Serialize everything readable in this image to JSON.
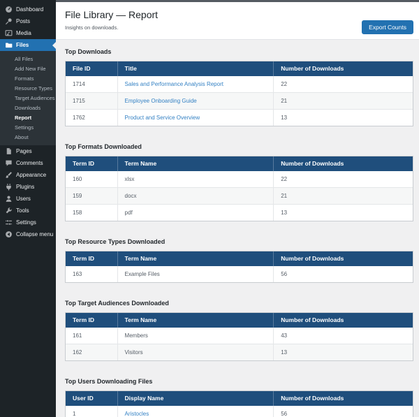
{
  "colors": {
    "accent": "#2271b1",
    "table_header_bg": "#1f4e7c",
    "link": "#3582c4",
    "sidebar_bg": "#1d2327",
    "submenu_bg": "#2c3338",
    "content_bg": "#f0f0f1"
  },
  "sidebar": {
    "items": [
      {
        "label": "Dashboard",
        "icon": "dashboard-icon"
      },
      {
        "label": "Posts",
        "icon": "pin-icon"
      },
      {
        "label": "Media",
        "icon": "media-icon"
      },
      {
        "label": "Files",
        "icon": "folder-icon",
        "active": true,
        "submenu": [
          {
            "label": "All Files"
          },
          {
            "label": "Add New File"
          },
          {
            "label": "Formats"
          },
          {
            "label": "Resource Types"
          },
          {
            "label": "Target Audiences"
          },
          {
            "label": "Downloads"
          },
          {
            "label": "Report",
            "current": true
          },
          {
            "label": "Settings"
          },
          {
            "label": "About"
          }
        ]
      },
      {
        "label": "Pages",
        "icon": "pages-icon"
      },
      {
        "label": "Comments",
        "icon": "comments-icon"
      },
      {
        "label": "Appearance",
        "icon": "appearance-icon"
      },
      {
        "label": "Plugins",
        "icon": "plugins-icon"
      },
      {
        "label": "Users",
        "icon": "users-icon"
      },
      {
        "label": "Tools",
        "icon": "tools-icon"
      },
      {
        "label": "Settings",
        "icon": "settings-icon"
      },
      {
        "label": "Collapse menu",
        "icon": "collapse-icon"
      }
    ]
  },
  "header": {
    "title": "File Library — Report",
    "subtitle": "Insights on downloads.",
    "export_button": "Export Counts"
  },
  "sections": [
    {
      "heading": "Top Downloads",
      "columns": [
        "File ID",
        "Title",
        "Number of Downloads"
      ],
      "link_column": 1,
      "rows": [
        [
          "1714",
          "Sales and Performance Analysis Report",
          "22"
        ],
        [
          "1715",
          "Employee Onboarding Guide",
          "21"
        ],
        [
          "1762",
          "Product and Service Overview",
          "13"
        ]
      ]
    },
    {
      "heading": "Top Formats Downloaded",
      "columns": [
        "Term ID",
        "Term Name",
        "Number of Downloads"
      ],
      "link_column": null,
      "rows": [
        [
          "160",
          "xlsx",
          "22"
        ],
        [
          "159",
          "docx",
          "21"
        ],
        [
          "158",
          "pdf",
          "13"
        ]
      ]
    },
    {
      "heading": "Top Resource Types Downloaded",
      "columns": [
        "Term ID",
        "Term Name",
        "Number of Downloads"
      ],
      "link_column": null,
      "rows": [
        [
          "163",
          "Example Files",
          "56"
        ]
      ]
    },
    {
      "heading": "Top Target Audiences Downloaded",
      "columns": [
        "Term ID",
        "Term Name",
        "Number of Downloads"
      ],
      "link_column": null,
      "rows": [
        [
          "161",
          "Members",
          "43"
        ],
        [
          "162",
          "Visitors",
          "13"
        ]
      ]
    },
    {
      "heading": "Top Users Downloading Files",
      "columns": [
        "User ID",
        "Display Name",
        "Number of Downloads"
      ],
      "link_column": 1,
      "rows": [
        [
          "1",
          "Aristocles",
          "56"
        ]
      ]
    }
  ]
}
